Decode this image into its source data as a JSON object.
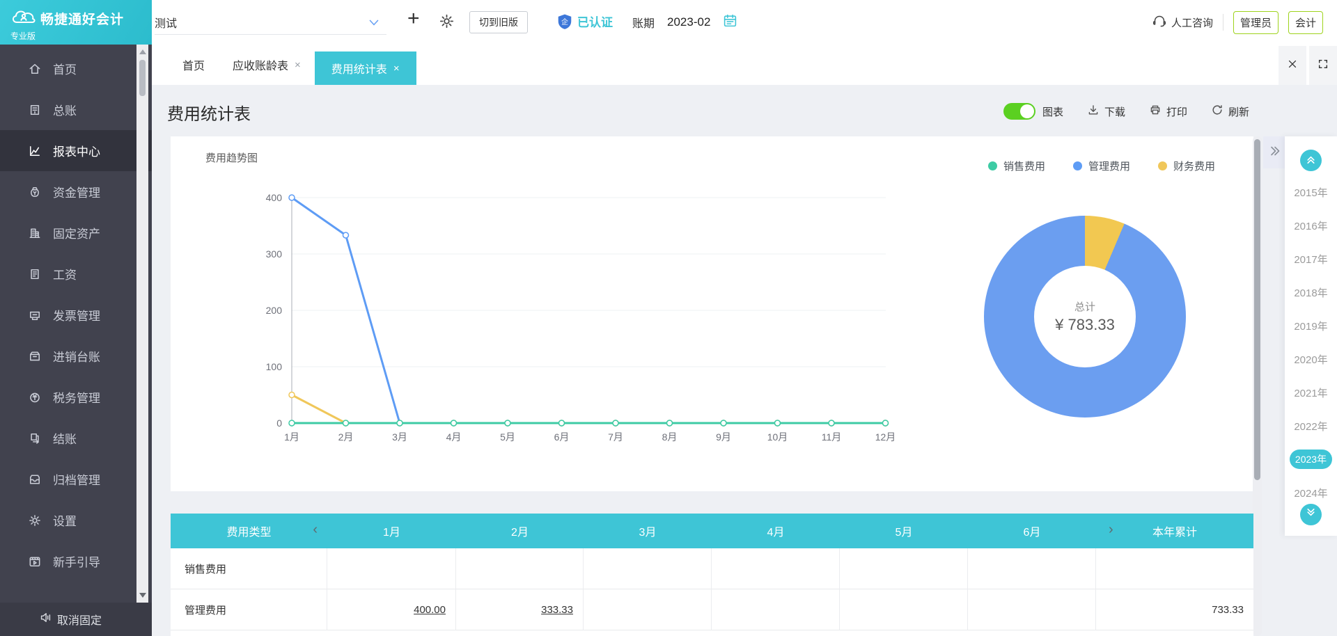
{
  "brand": {
    "name": "畅捷通好会计",
    "edition": "专业版",
    "logo_icon": "cloud-logo-icon"
  },
  "header": {
    "workspace": "测试",
    "workspace_icon": "chevron-down-icon",
    "add_label": "+",
    "settings_icon": "gear-icon",
    "switch_old_label": "切到旧版",
    "cert": {
      "icon": "shield-icon",
      "glyph": "企",
      "label": "已认证"
    },
    "period_label": "账期",
    "period_value": "2023-02",
    "calendar_icon": "calendar-icon",
    "support_label": "人工咨询",
    "support_icon": "headset-icon",
    "role_badges": [
      "管理员",
      "会计"
    ]
  },
  "tabs": [
    {
      "label": "首页",
      "closable": false,
      "active": false
    },
    {
      "label": "应收账龄表",
      "closable": true,
      "active": false
    },
    {
      "label": "费用统计表",
      "closable": true,
      "active": true
    }
  ],
  "tabbar_actions": {
    "close_icon": "close-icon",
    "fullscreen_icon": "fullscreen-icon"
  },
  "sidebar": {
    "items": [
      {
        "id": "home",
        "label": "首页",
        "icon": "home-icon",
        "active": false
      },
      {
        "id": "general-ledger",
        "label": "总账",
        "icon": "ledger-icon",
        "active": false
      },
      {
        "id": "report-center",
        "label": "报表中心",
        "icon": "reports-icon",
        "active": true
      },
      {
        "id": "funds",
        "label": "资金管理",
        "icon": "funds-icon",
        "active": false
      },
      {
        "id": "fixed-assets",
        "label": "固定资产",
        "icon": "assets-icon",
        "active": false
      },
      {
        "id": "salary",
        "label": "工资",
        "icon": "salary-icon",
        "active": false
      },
      {
        "id": "invoice",
        "label": "发票管理",
        "icon": "invoice-icon",
        "active": false
      },
      {
        "id": "inventory",
        "label": "进销台账",
        "icon": "inventory-icon",
        "active": false
      },
      {
        "id": "tax",
        "label": "税务管理",
        "icon": "tax-icon",
        "active": false
      },
      {
        "id": "closing",
        "label": "结账",
        "icon": "closing-icon",
        "active": false
      },
      {
        "id": "archive",
        "label": "归档管理",
        "icon": "archive-icon",
        "active": false
      },
      {
        "id": "settings",
        "label": "设置",
        "icon": "settings-icon",
        "active": false
      },
      {
        "id": "guide",
        "label": "新手引导",
        "icon": "guide-icon",
        "active": false
      },
      {
        "id": "clipped",
        "label": "",
        "icon": "clipped-icon",
        "active": false
      }
    ],
    "unpin_label": "取消固定",
    "unpin_icon": "unpin-icon"
  },
  "page": {
    "title": "费用统计表",
    "toolbar": {
      "chart_toggle_label": "图表",
      "chart_toggle_on": true,
      "download_label": "下载",
      "download_icon": "download-icon",
      "print_label": "打印",
      "print_icon": "print-icon",
      "refresh_label": "刷新",
      "refresh_icon": "refresh-icon"
    }
  },
  "chart_data": [
    {
      "type": "line",
      "title": "费用趋势图",
      "categories": [
        "1月",
        "2月",
        "3月",
        "4月",
        "5月",
        "6月",
        "7月",
        "8月",
        "9月",
        "10月",
        "11月",
        "12月"
      ],
      "series": [
        {
          "name": "销售费用",
          "color": "#3DCBA4",
          "values": [
            0,
            0,
            0,
            0,
            0,
            0,
            0,
            0,
            0,
            0,
            0,
            0
          ]
        },
        {
          "name": "管理费用",
          "color": "#5E9CF5",
          "values": [
            400,
            333.33,
            0,
            0,
            0,
            0,
            0,
            0,
            0,
            0,
            0,
            0
          ]
        },
        {
          "name": "财务费用",
          "color": "#F0C75A",
          "values": [
            50,
            0,
            0,
            0,
            0,
            0,
            0,
            0,
            0,
            0,
            0,
            0
          ]
        }
      ],
      "ylim": [
        0,
        400
      ],
      "yticks": [
        0,
        100,
        200,
        300,
        400
      ],
      "grid": true,
      "legend_position": "top-right"
    },
    {
      "type": "pie",
      "donut": true,
      "center_label": "总计",
      "center_value": "¥ 783.33",
      "total": 783.33,
      "clockwise_from_top": true,
      "slices": [
        {
          "name": "财务费用",
          "value": 50,
          "color": "#F2C851"
        },
        {
          "name": "管理费用",
          "value": 733.33,
          "color": "#6B9EF0"
        }
      ]
    }
  ],
  "year_panel": {
    "years": [
      "2015年",
      "2016年",
      "2017年",
      "2018年",
      "2019年",
      "2020年",
      "2021年",
      "2022年",
      "2023年",
      "2024年"
    ],
    "selected": "2023年",
    "up_icon": "double-chevron-up-icon",
    "down_icon": "double-chevron-down-icon",
    "collapse_icon": "double-chevron-right-icon"
  },
  "table": {
    "columns": [
      "费用类型",
      "1月",
      "2月",
      "3月",
      "4月",
      "5月",
      "6月",
      "本年累计"
    ],
    "prev_icon": "chevron-left-icon",
    "next_icon": "chevron-right-icon",
    "rows": [
      {
        "name": "销售费用",
        "values": [
          "",
          "",
          "",
          "",
          "",
          "",
          ""
        ]
      },
      {
        "name": "管理费用",
        "values": [
          "400.00",
          "333.33",
          "",
          "",
          "",
          "",
          "733.33"
        ]
      }
    ]
  },
  "colors": {
    "brand_teal": "#3EC5D6",
    "sidebar_bg": "#41424E",
    "sidebar_active_bg": "#32333D",
    "toggle_on_green": "#5BD021",
    "role_badge_border": "#9ED31C",
    "cert_blue": "#3D77D9",
    "table_header": "#3EC5D6",
    "page_bg": "#EEF0F4",
    "series_green": "#3DCBA4",
    "series_blue": "#5E9CF5",
    "series_yellow": "#F0C75A",
    "donut_blue": "#6B9EF0",
    "donut_yellow": "#F2C851"
  }
}
